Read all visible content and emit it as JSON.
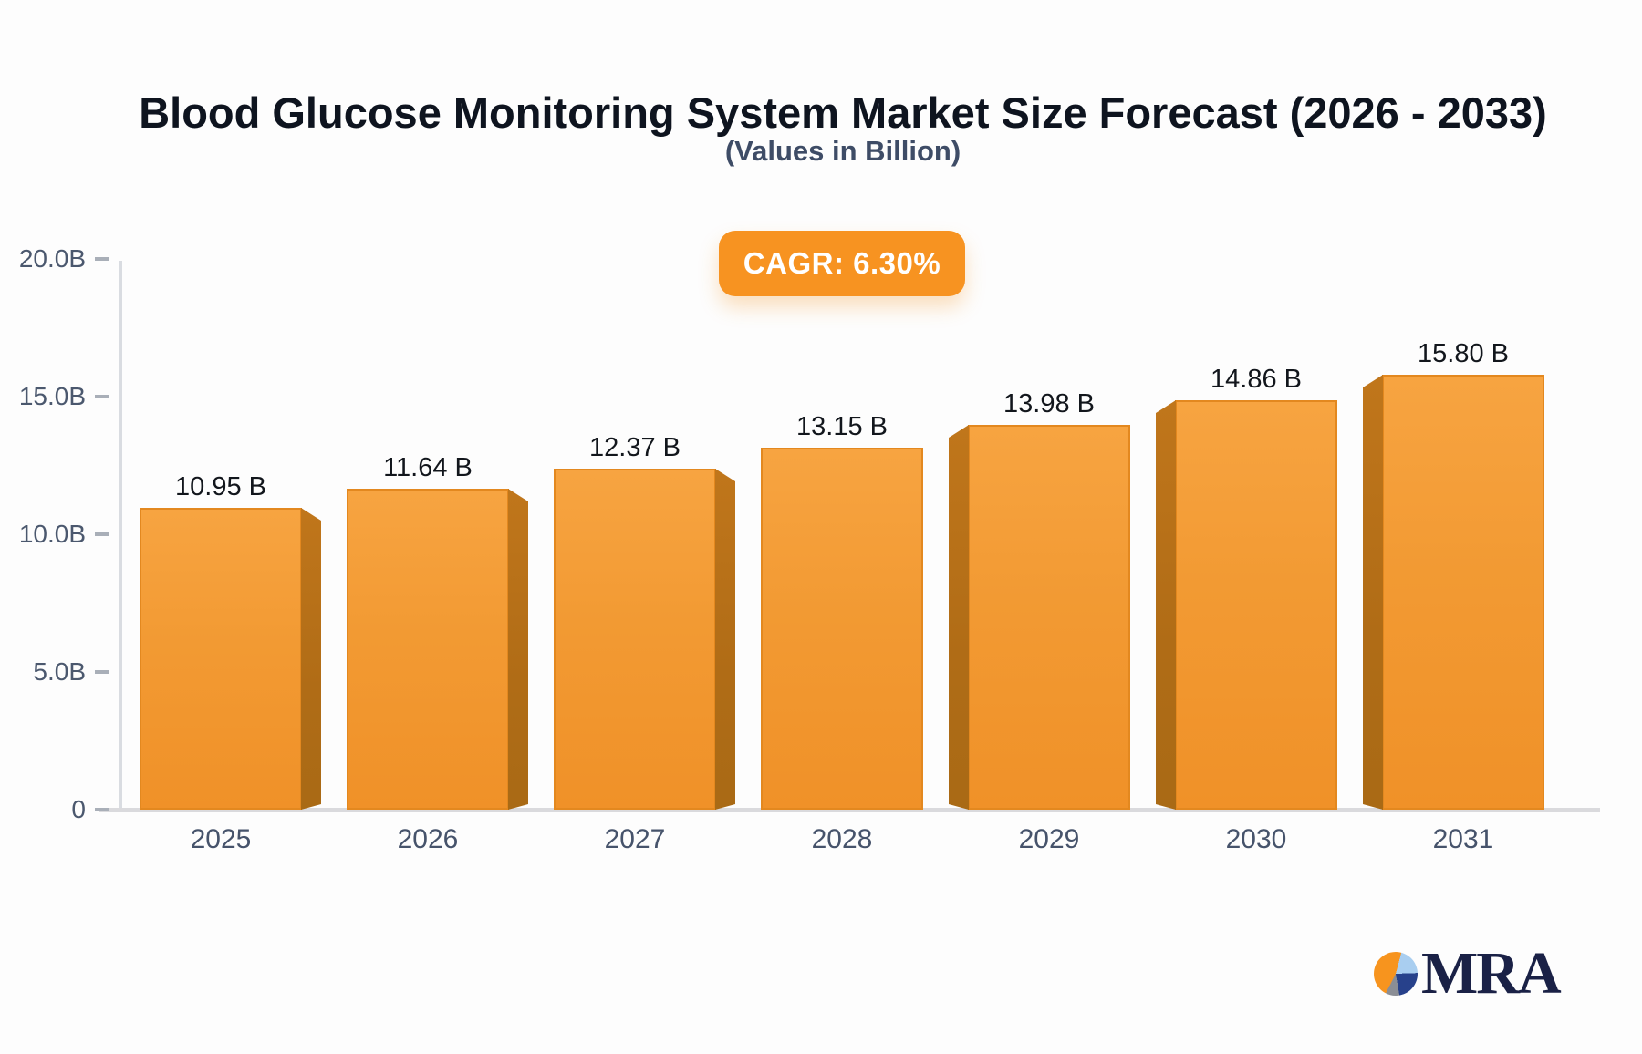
{
  "header": {
    "title": "Blood Glucose Monitoring System Market Size Forecast (2026 - 2033)",
    "subtitle": "(Values in Billion)"
  },
  "badge": {
    "label": "CAGR: 6.30%",
    "bg_color": "#f79321",
    "text_color": "#ffffff"
  },
  "chart_data": {
    "type": "bar",
    "title": "Blood Glucose Monitoring System Market Size Forecast (2026 - 2033)",
    "subtitle": "(Values in Billion)",
    "annotation": "CAGR: 6.30%",
    "categories": [
      "2025",
      "2026",
      "2027",
      "2028",
      "2029",
      "2030",
      "2031"
    ],
    "values": [
      10.95,
      11.64,
      12.37,
      13.15,
      13.98,
      14.86,
      15.8
    ],
    "value_labels": [
      "10.95 B",
      "11.64 B",
      "12.37 B",
      "13.15 B",
      "13.98 B",
      "14.86 B",
      "15.80 B"
    ],
    "xlabel": "",
    "ylabel": "",
    "ylim": [
      0,
      20
    ],
    "y_ticks": [
      {
        "label": "20.0B",
        "value": 20
      },
      {
        "label": "15.0B",
        "value": 15
      },
      {
        "label": "10.0B",
        "value": 10
      },
      {
        "label": "5.0B",
        "value": 5
      },
      {
        "label": "0",
        "value": 0
      }
    ],
    "grid": false,
    "legend": false,
    "bar_face_color_top": "#f7a441",
    "bar_face_color_bottom": "#f09128",
    "bar_side_color": "#b06c16",
    "bar_border_color": "#e3881f",
    "axis_color": "#d9dce1",
    "tick_label_color": "#4b586e",
    "value_label_color": "#12161c"
  },
  "logo": {
    "text": "MRA",
    "pie_colors": {
      "orange": "#f7941e",
      "light_blue": "#a9cef0",
      "dark_blue": "#27418b",
      "gray": "#8b8e95"
    }
  }
}
